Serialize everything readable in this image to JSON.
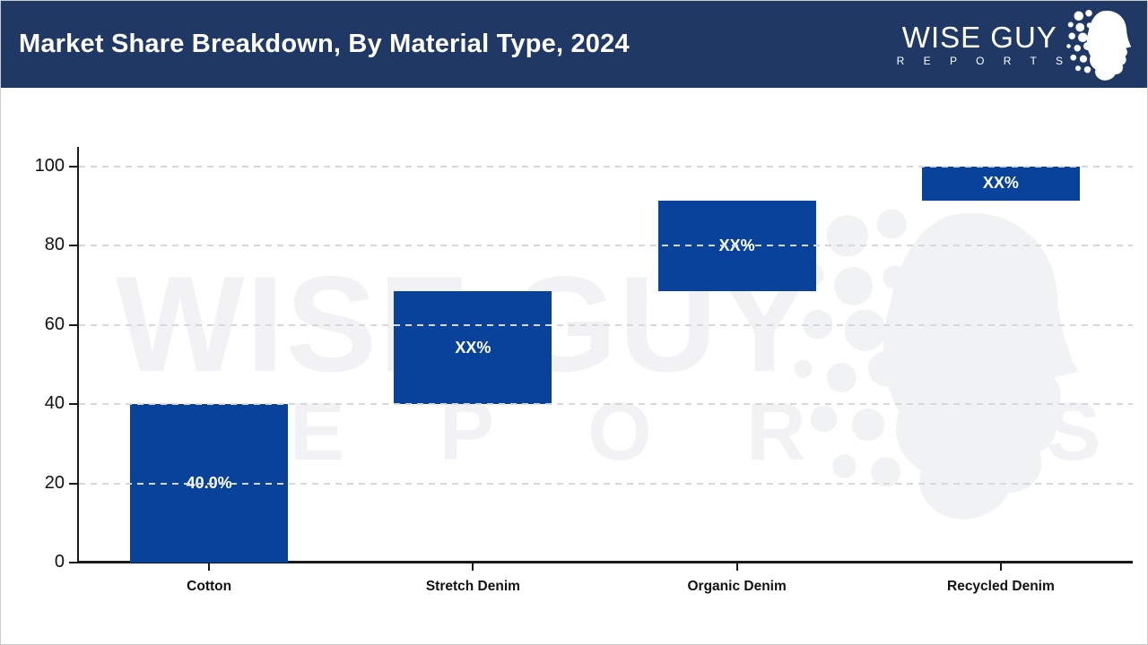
{
  "header": {
    "title": "Market Share Breakdown, By Material Type, 2024",
    "logo": {
      "brand": "WISE GUY",
      "sub": "R E P O R T S"
    }
  },
  "watermark": {
    "line1": "WISE GUY",
    "line2": "R E P O R T S"
  },
  "colors": {
    "header_bg": "#1f3864",
    "bar": "#08429b",
    "bar_label": "#ffffff",
    "axis": "#1a1a1a",
    "grid": "#d8d8d8",
    "watermark": "#f1f2f4"
  },
  "chart_data": {
    "type": "bar",
    "subtype": "waterfall",
    "title": "Market Share Breakdown, By Material Type, 2024",
    "categories": [
      "Cotton",
      "Stretch Denim",
      "Organic Denim",
      "Recycled Denim"
    ],
    "segments": [
      {
        "category": "Cotton",
        "start": 0,
        "end": 40,
        "label": "40.0%"
      },
      {
        "category": "Stretch Denim",
        "start": 40,
        "end": 68.5,
        "label": "XX%"
      },
      {
        "category": "Organic Denim",
        "start": 68.5,
        "end": 91.5,
        "label": "XX%"
      },
      {
        "category": "Recycled Denim",
        "start": 91.5,
        "end": 100,
        "label": "XX%"
      }
    ],
    "values_pct": [
      40.0,
      28.5,
      23.0,
      8.5
    ],
    "yticks": [
      0,
      20,
      40,
      60,
      80,
      100
    ],
    "ylim": [
      0,
      105
    ],
    "xlabel": "",
    "ylabel": "",
    "grid": "horizontal-dashed",
    "legend": "none"
  }
}
